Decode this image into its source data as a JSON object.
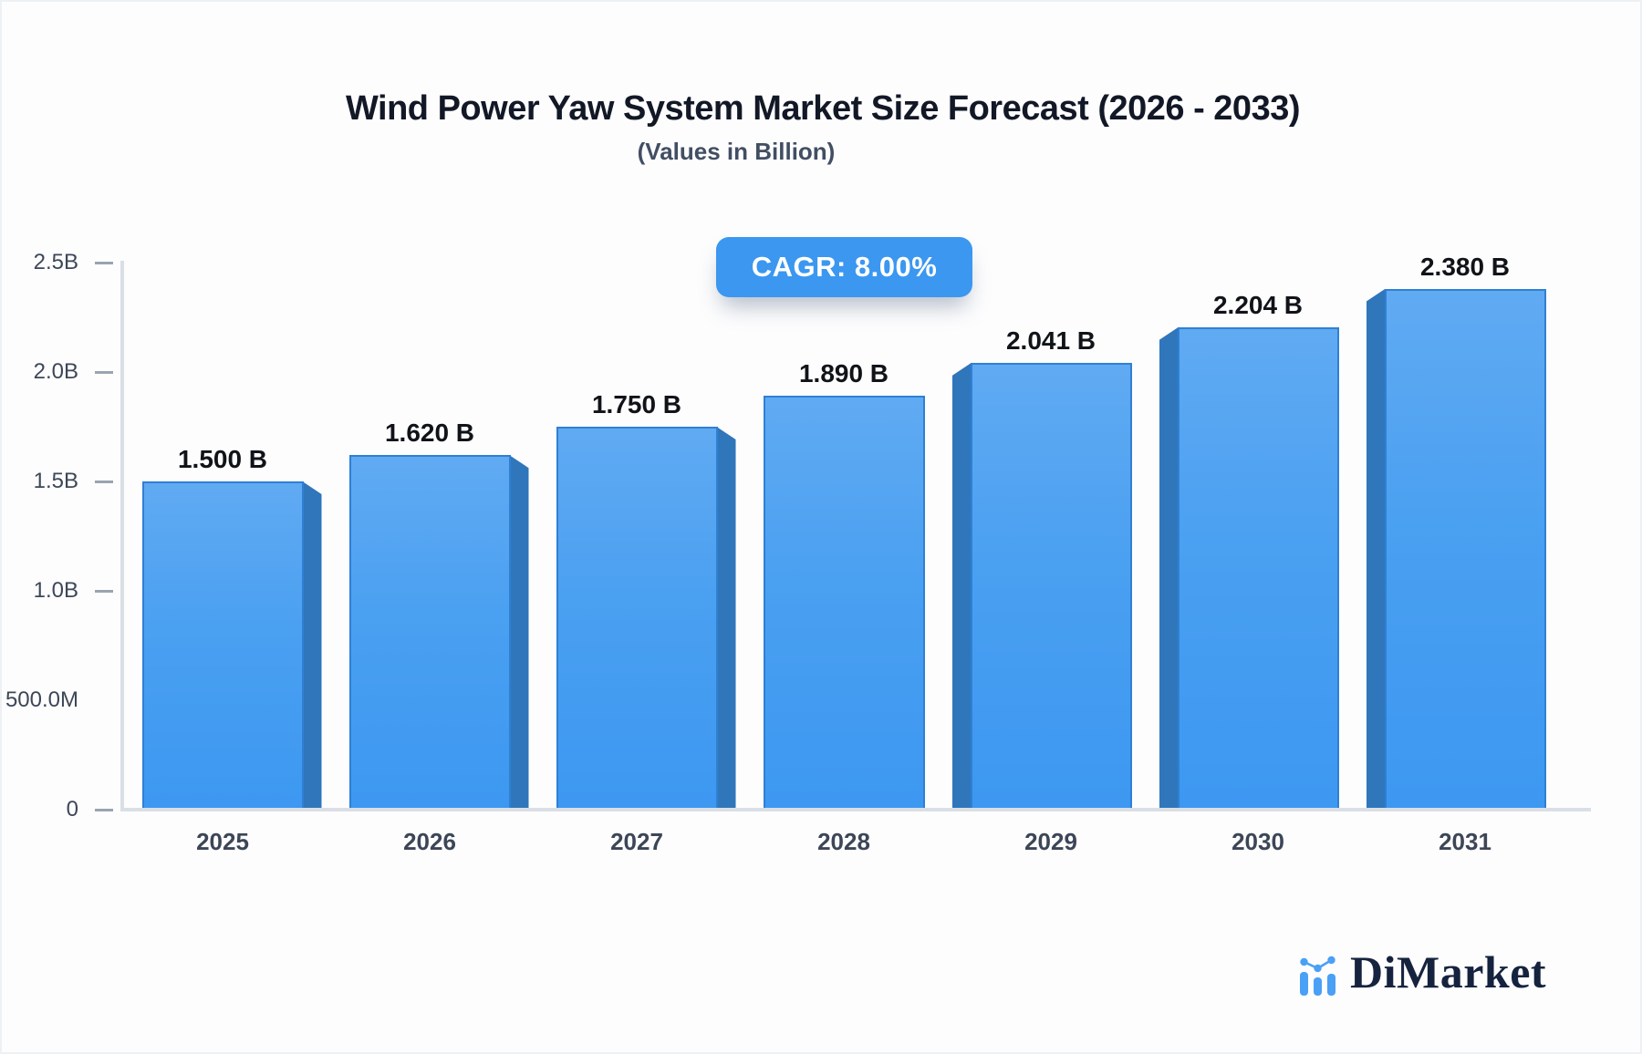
{
  "header": {
    "title": "Wind Power Yaw System Market Size Forecast (2026 - 2033)",
    "subtitle": "(Values in Billion)"
  },
  "badge": {
    "label": "CAGR: 8.00%",
    "background": "#3b97f0",
    "text_color": "#ffffff"
  },
  "chart_data": {
    "type": "bar",
    "title": "Wind Power Yaw System Market Size Forecast (2026 - 2033)",
    "subtitle": "(Values in Billion)",
    "categories": [
      "2025",
      "2026",
      "2027",
      "2028",
      "2029",
      "2030",
      "2031"
    ],
    "values": [
      1.5,
      1.62,
      1.75,
      1.89,
      2.041,
      2.204,
      2.38
    ],
    "value_labels": [
      "1.500 B",
      "1.620 B",
      "1.750 B",
      "1.890 B",
      "2.041 B",
      "2.204 B",
      "2.380 B"
    ],
    "xlabel": "",
    "ylabel": "",
    "ylim": [
      0,
      2.5
    ],
    "yticks": [
      {
        "value": 2.5,
        "label": "2.5B",
        "dash": true
      },
      {
        "value": 2.0,
        "label": "2.0B",
        "dash": true
      },
      {
        "value": 1.5,
        "label": "1.5B",
        "dash": true
      },
      {
        "value": 1.0,
        "label": "1.0B",
        "dash": true
      },
      {
        "value": 0.5,
        "label": "500.0M",
        "dash": false
      },
      {
        "value": 0.0,
        "label": "0",
        "dash": true
      }
    ],
    "grid": false,
    "legend": false,
    "bar_face_top_color": "#60aaf2",
    "bar_face_bottom_color": "#3d98f1",
    "bar_border_color": "#2f80d4",
    "bar_side_color": "#2f76bb",
    "axis_color": "#dadfe6"
  },
  "footer_logo": {
    "text": "DiMarket",
    "icon": "bar-line-chart-icon",
    "icon_color": "#4aa0f5",
    "text_color": "#16233f"
  }
}
